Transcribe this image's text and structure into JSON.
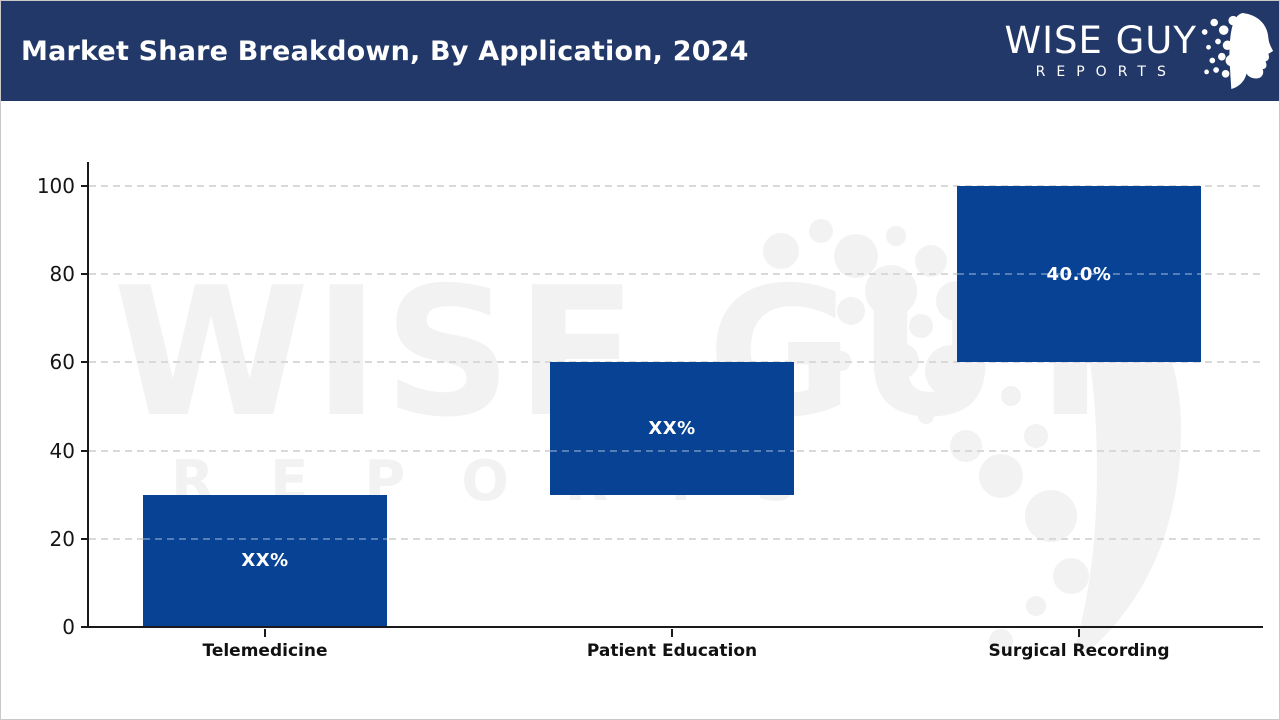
{
  "header": {
    "title": "Market Share Breakdown, By Application, 2024",
    "logo": {
      "line1": "WISE GUY",
      "line2": "REPORTS"
    }
  },
  "watermark": {
    "line1": "WISE GUY",
    "line2": "REPORTS"
  },
  "colors": {
    "header_background": "#223868",
    "bar": "#084295",
    "grid": "#d9d9d9",
    "axis": "#1a1a1a",
    "bar_label": "#ffffff",
    "watermark": "#f2f2f2"
  },
  "chart_data": {
    "type": "bar",
    "subtype": "floating-segment-bars",
    "title": "Market Share Breakdown, By Application, 2024",
    "categories": [
      "Telemedicine",
      "Patient Education",
      "Surgical Recording"
    ],
    "bars": [
      {
        "category": "Telemedicine",
        "from": 0,
        "to": 30,
        "height": 30,
        "value_label": "XX%"
      },
      {
        "category": "Patient Education",
        "from": 30,
        "to": 60,
        "height": 30,
        "value_label": "XX%"
      },
      {
        "category": "Surgical Recording",
        "from": 60,
        "to": 100,
        "height": 40,
        "value_label": "40.0%"
      }
    ],
    "xlabel": "",
    "ylabel": "",
    "ylim": [
      0,
      100
    ],
    "yticks": [
      0,
      20,
      40,
      60,
      80,
      100
    ],
    "grid": "horizontal-dashed",
    "legend": "none"
  }
}
